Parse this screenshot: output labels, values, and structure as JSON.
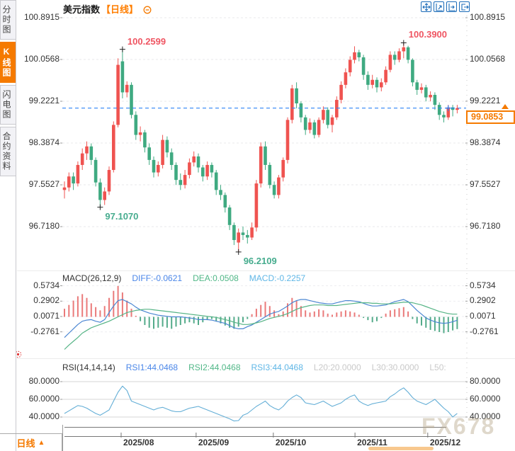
{
  "window": {
    "title_symbol": "美元指数",
    "title_period": "【日线】"
  },
  "sidebar": {
    "tabs": [
      {
        "label": "分时图",
        "active": false
      },
      {
        "label": "K线图",
        "active": true
      },
      {
        "label": "闪电图",
        "active": false
      },
      {
        "label": "合约资料",
        "active": false
      }
    ]
  },
  "toolbar": {
    "icons": [
      "move-crosshair-icon",
      "fit-y-axis-icon",
      "fit-x-axis-icon",
      "export-chart-icon"
    ]
  },
  "icons": {
    "collapse": "circle-minus-icon",
    "period_arrow": "▲",
    "indicator_dot": "red-dotted-marker-icon"
  },
  "price_tag": {
    "value": "99.0853"
  },
  "macd_header": {
    "name": "MACD(26,12,9)",
    "diff": "DIFF:-0.0621",
    "dea": "DEA:0.0508",
    "macd": "MACD:-0.2257"
  },
  "rsi_header": {
    "name": "RSI(14,14,14)",
    "rsi1": "RSI1:44.0468",
    "rsi2": "RSI2:44.0468",
    "rsi3": "RSI3:44.0468",
    "l20": "L20:20.0000",
    "l30": "L30:30.0000",
    "l50": "L50:"
  },
  "axes": {
    "price_labels": [
      "100.8915",
      "100.0568",
      "99.2221",
      "98.3874",
      "97.5527",
      "96.7180"
    ],
    "macd_labels": [
      "0.5734",
      "0.2902",
      "0.0071",
      "-0.2761"
    ],
    "rsi_labels": [
      "80.0000",
      "60.0000",
      "40.0000"
    ]
  },
  "bottom": {
    "period_label": "日线",
    "period_arrow": "▲"
  },
  "watermark": "FX678",
  "colors": {
    "up": "#ef5350",
    "down": "#3faa81",
    "hist_up": "#ea7a7a",
    "hist_down": "#54ab8a",
    "diff": "#4b86d2",
    "dea": "#56b486",
    "rsi": "#63aed6",
    "current_line": "#2c83f6",
    "accent_orange": "#f57a00",
    "annotation_high": "#ef5562",
    "annotation_low": "#46ac8e",
    "toolbar_blue": "#1b6bb8"
  },
  "chart_data": {
    "type": "candlestick",
    "title": "美元指数",
    "period": "日线",
    "current_price": 99.0853,
    "price_axis_range": [
      96.3,
      100.8915
    ],
    "legend_position": "top-left-headers",
    "grid": "dashed-horizontal",
    "high_low_marks": {
      "high1": 100.2599,
      "high2": 100.39,
      "low1": 97.107,
      "low2": 96.2109
    },
    "x_month_ticks": [
      {
        "label": "2025/08",
        "i": 12.7
      },
      {
        "label": "2025/09",
        "i": 29.5
      },
      {
        "label": "2025/10",
        "i": 46.8
      },
      {
        "label": "2025/11",
        "i": 65.1
      },
      {
        "label": "2025/12",
        "i": 81.4
      }
    ],
    "annotations": [
      {
        "text": "100.2599",
        "i": 13,
        "price": 100.2599,
        "type": "high"
      },
      {
        "text": "100.3900",
        "i": 76,
        "price": 100.39,
        "type": "high"
      },
      {
        "text": "97.1070",
        "i": 8,
        "price": 97.107,
        "type": "low"
      },
      {
        "text": "96.2109",
        "i": 39,
        "price": 96.2109,
        "type": "low"
      }
    ],
    "candles": [
      [
        97.45,
        97.62,
        97.28,
        97.5
      ],
      [
        97.5,
        97.8,
        97.42,
        97.72
      ],
      [
        97.72,
        97.8,
        97.45,
        97.58
      ],
      [
        97.58,
        98.02,
        97.52,
        97.95
      ],
      [
        97.95,
        98.28,
        97.85,
        98.18
      ],
      [
        98.18,
        98.42,
        98.05,
        98.32
      ],
      [
        98.32,
        98.38,
        97.95,
        98.05
      ],
      [
        98.05,
        98.1,
        97.52,
        97.6
      ],
      [
        97.6,
        97.68,
        97.107,
        97.25
      ],
      [
        97.25,
        97.5,
        97.15,
        97.42
      ],
      [
        97.42,
        97.92,
        97.35,
        97.85
      ],
      [
        97.85,
        98.82,
        97.8,
        98.75
      ],
      [
        98.75,
        100.08,
        98.7,
        99.95
      ],
      [
        100.02,
        100.2599,
        99.28,
        99.4
      ],
      [
        99.4,
        99.62,
        99.3,
        99.55
      ],
      [
        99.55,
        99.6,
        98.88,
        98.95
      ],
      [
        98.95,
        99.02,
        98.45,
        98.55
      ],
      [
        98.55,
        98.72,
        98.42,
        98.6
      ],
      [
        98.6,
        98.65,
        98.2,
        98.3
      ],
      [
        98.3,
        98.38,
        97.95,
        98.05
      ],
      [
        98.05,
        98.12,
        97.7,
        97.8
      ],
      [
        97.8,
        98.02,
        97.72,
        97.95
      ],
      [
        97.95,
        98.55,
        97.88,
        98.45
      ],
      [
        98.45,
        98.52,
        98.1,
        98.2
      ],
      [
        98.2,
        98.28,
        97.85,
        97.95
      ],
      [
        97.95,
        98.0,
        97.55,
        97.65
      ],
      [
        97.65,
        97.78,
        97.45,
        97.55
      ],
      [
        97.55,
        97.85,
        97.48,
        97.75
      ],
      [
        97.75,
        98.08,
        97.68,
        98.0
      ],
      [
        98.0,
        98.22,
        97.92,
        98.12
      ],
      [
        98.12,
        98.18,
        97.8,
        97.9
      ],
      [
        97.9,
        97.95,
        97.62,
        97.72
      ],
      [
        97.72,
        98.02,
        97.65,
        97.95
      ],
      [
        97.95,
        98.0,
        97.7,
        97.8
      ],
      [
        97.8,
        97.85,
        97.35,
        97.45
      ],
      [
        97.45,
        97.55,
        97.25,
        97.35
      ],
      [
        97.35,
        97.4,
        97.0,
        97.1
      ],
      [
        97.1,
        97.15,
        96.65,
        96.75
      ],
      [
        96.75,
        96.8,
        96.35,
        96.45
      ],
      [
        96.4,
        96.68,
        96.2109,
        96.6
      ],
      [
        96.6,
        96.72,
        96.45,
        96.55
      ],
      [
        96.55,
        96.65,
        96.38,
        96.5
      ],
      [
        96.5,
        96.8,
        96.45,
        96.7
      ],
      [
        96.7,
        97.65,
        96.62,
        97.58
      ],
      [
        97.58,
        98.4,
        97.5,
        98.32
      ],
      [
        98.32,
        98.42,
        97.85,
        97.95
      ],
      [
        97.95,
        98.0,
        97.48,
        97.55
      ],
      [
        97.55,
        97.62,
        97.28,
        97.35
      ],
      [
        97.35,
        97.75,
        97.28,
        97.7
      ],
      [
        97.7,
        98.1,
        97.62,
        98.05
      ],
      [
        98.05,
        98.9,
        97.98,
        98.85
      ],
      [
        98.85,
        99.55,
        98.78,
        99.48
      ],
      [
        99.48,
        99.6,
        99.08,
        99.18
      ],
      [
        99.18,
        99.22,
        98.8,
        98.9
      ],
      [
        98.9,
        98.95,
        98.55,
        98.65
      ],
      [
        98.65,
        98.88,
        98.58,
        98.8
      ],
      [
        98.8,
        98.85,
        98.48,
        98.55
      ],
      [
        98.55,
        98.9,
        98.5,
        98.85
      ],
      [
        98.85,
        99.12,
        98.78,
        99.05
      ],
      [
        99.05,
        99.1,
        98.68,
        98.75
      ],
      [
        98.75,
        98.95,
        98.6,
        98.9
      ],
      [
        98.9,
        99.32,
        98.85,
        99.25
      ],
      [
        99.25,
        99.62,
        99.18,
        99.55
      ],
      [
        99.55,
        99.88,
        99.48,
        99.8
      ],
      [
        99.8,
        100.12,
        99.72,
        100.05
      ],
      [
        100.05,
        100.32,
        99.98,
        100.2
      ],
      [
        100.2,
        100.25,
        100.02,
        100.1
      ],
      [
        100.1,
        100.15,
        99.65,
        99.75
      ],
      [
        99.75,
        99.82,
        99.45,
        99.55
      ],
      [
        99.55,
        99.75,
        99.48,
        99.65
      ],
      [
        99.65,
        99.7,
        99.4,
        99.5
      ],
      [
        99.5,
        99.68,
        99.42,
        99.6
      ],
      [
        99.6,
        99.92,
        99.55,
        99.85
      ],
      [
        99.85,
        100.22,
        99.8,
        100.15
      ],
      [
        100.15,
        100.22,
        99.95,
        100.05
      ],
      [
        100.05,
        100.28,
        100.0,
        100.22
      ],
      [
        100.22,
        100.39,
        100.08,
        100.3
      ],
      [
        100.3,
        100.33,
        99.98,
        100.05
      ],
      [
        100.05,
        100.08,
        99.52,
        99.6
      ],
      [
        99.6,
        99.65,
        99.35,
        99.45
      ],
      [
        99.45,
        99.58,
        99.38,
        99.5
      ],
      [
        99.5,
        99.55,
        99.22,
        99.3
      ],
      [
        99.3,
        99.42,
        99.22,
        99.35
      ],
      [
        99.35,
        99.4,
        99.05,
        99.15
      ],
      [
        99.15,
        99.2,
        98.85,
        98.95
      ],
      [
        98.95,
        99.02,
        98.8,
        98.9
      ],
      [
        98.9,
        99.15,
        98.85,
        99.1
      ],
      [
        99.1,
        99.15,
        98.92,
        99.05
      ],
      [
        99.05,
        99.15,
        98.98,
        99.0853
      ]
    ],
    "macd": {
      "params": [
        26,
        12,
        9
      ],
      "diff_last": -0.0621,
      "dea_last": 0.0508,
      "macd_last": -0.2257,
      "hist": [
        0.15,
        0.22,
        0.3,
        0.38,
        0.42,
        0.35,
        0.25,
        0.18,
        0.12,
        0.2,
        0.35,
        0.48,
        0.57,
        0.45,
        0.3,
        0.15,
        0.02,
        -0.08,
        -0.15,
        -0.2,
        -0.22,
        -0.2,
        -0.18,
        -0.2,
        -0.22,
        -0.18,
        -0.15,
        -0.12,
        -0.1,
        -0.12,
        -0.15,
        -0.1,
        -0.06,
        -0.04,
        -0.08,
        -0.12,
        -0.16,
        -0.2,
        -0.22,
        -0.18,
        -0.1,
        -0.04,
        0.05,
        0.15,
        0.22,
        0.28,
        0.2,
        0.12,
        0.05,
        0.1,
        0.25,
        0.35,
        0.3,
        0.2,
        0.12,
        0.08,
        0.1,
        0.14,
        0.12,
        0.06,
        0.04,
        0.08,
        0.1,
        0.12,
        0.1,
        0.08,
        0.04,
        -0.02,
        -0.06,
        -0.1,
        -0.08,
        -0.02,
        0.06,
        0.12,
        0.14,
        0.16,
        0.18,
        0.1,
        -0.04,
        -0.12,
        -0.16,
        -0.2,
        -0.24,
        -0.26,
        -0.28,
        -0.3,
        -0.28,
        -0.25,
        -0.2257
      ],
      "diff": [
        -0.38,
        -0.3,
        -0.22,
        -0.14,
        -0.08,
        -0.06,
        -0.05,
        -0.08,
        -0.1,
        -0.05,
        0.08,
        0.2,
        0.3,
        0.32,
        0.28,
        0.24,
        0.18,
        0.13,
        0.1,
        0.07,
        0.05,
        0.03,
        0.02,
        0.01,
        0.0,
        0.0,
        0.0,
        -0.01,
        -0.02,
        -0.03,
        -0.05,
        -0.05,
        -0.05,
        -0.06,
        -0.08,
        -0.1,
        -0.12,
        -0.16,
        -0.2,
        -0.22,
        -0.22,
        -0.18,
        -0.15,
        -0.1,
        -0.05,
        0.0,
        0.05,
        0.08,
        0.1,
        0.15,
        0.2,
        0.26,
        0.3,
        0.32,
        0.32,
        0.3,
        0.28,
        0.26,
        0.25,
        0.24,
        0.24,
        0.26,
        0.28,
        0.3,
        0.3,
        0.29,
        0.28,
        0.25,
        0.22,
        0.2,
        0.2,
        0.21,
        0.22,
        0.25,
        0.28,
        0.3,
        0.32,
        0.28,
        0.2,
        0.12,
        0.05,
        -0.02,
        -0.06,
        -0.09,
        -0.11,
        -0.12,
        -0.11,
        -0.09,
        -0.0621
      ],
      "dea": [
        -0.6,
        -0.52,
        -0.45,
        -0.38,
        -0.3,
        -0.25,
        -0.2,
        -0.17,
        -0.14,
        -0.11,
        -0.08,
        -0.04,
        0.0,
        0.04,
        0.08,
        0.1,
        0.12,
        0.13,
        0.14,
        0.14,
        0.13,
        0.12,
        0.11,
        0.1,
        0.09,
        0.08,
        0.07,
        0.06,
        0.05,
        0.04,
        0.03,
        0.02,
        0.01,
        0.0,
        -0.01,
        -0.03,
        -0.05,
        -0.07,
        -0.1,
        -0.12,
        -0.14,
        -0.14,
        -0.13,
        -0.11,
        -0.09,
        -0.06,
        -0.03,
        -0.01,
        0.01,
        0.03,
        0.06,
        0.1,
        0.14,
        0.17,
        0.19,
        0.21,
        0.22,
        0.22,
        0.22,
        0.21,
        0.21,
        0.21,
        0.22,
        0.23,
        0.24,
        0.25,
        0.26,
        0.26,
        0.26,
        0.25,
        0.25,
        0.24,
        0.24,
        0.24,
        0.25,
        0.26,
        0.27,
        0.27,
        0.26,
        0.24,
        0.22,
        0.19,
        0.16,
        0.13,
        0.1,
        0.08,
        0.06,
        0.05,
        0.0508
      ]
    },
    "rsi": {
      "params": [
        14,
        14,
        14
      ],
      "rsi1_last": 44.0468,
      "rsi2_last": 44.0468,
      "rsi3_last": 44.0468,
      "levels": {
        "L20": 20.0,
        "L30": 30.0,
        "L50": null
      },
      "values": [
        44,
        47,
        50,
        53,
        52,
        50,
        47,
        44,
        42,
        45,
        48,
        58,
        68,
        75,
        70,
        58,
        56,
        54,
        52,
        50,
        48,
        50,
        51,
        49,
        47,
        46,
        46,
        48,
        50,
        51,
        52,
        50,
        48,
        46,
        44,
        42,
        40,
        38,
        35.5,
        36,
        42,
        44,
        48,
        52,
        55,
        58,
        53,
        50,
        48,
        52,
        58,
        62,
        65,
        62,
        56,
        55,
        54,
        56,
        58,
        55,
        52,
        54,
        56,
        60,
        63,
        65,
        58,
        55,
        53,
        55,
        56,
        57,
        58,
        63,
        66,
        70,
        73,
        68,
        62,
        58,
        56,
        54,
        57,
        60,
        55,
        50,
        46,
        40,
        44.0468
      ]
    }
  }
}
